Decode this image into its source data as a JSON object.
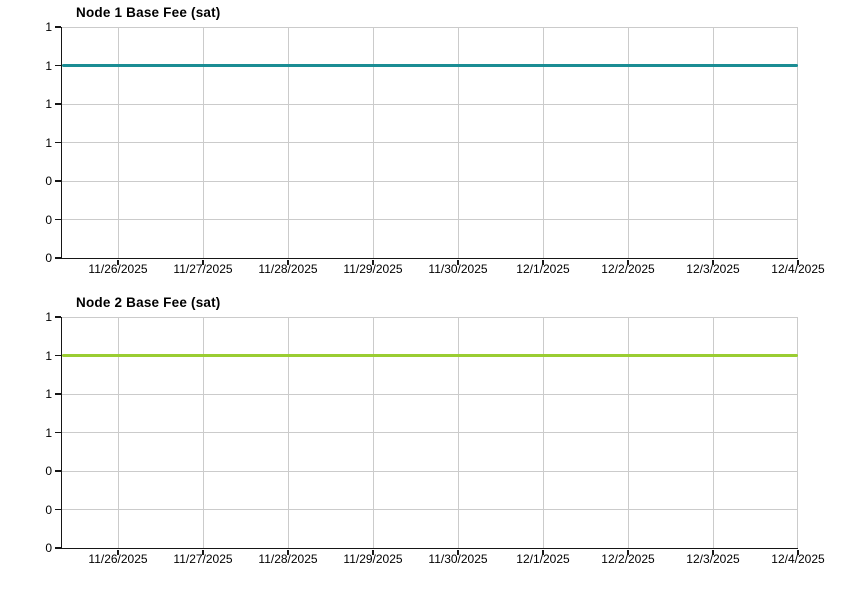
{
  "page": {
    "background": "#ffffff",
    "grid_color": "#cbcbcb",
    "axis_color": "#161616",
    "text_color": "#000000"
  },
  "chart_data": [
    {
      "type": "line",
      "title": "Node 1 Base Fee (sat)",
      "xlabel": "",
      "ylabel": "",
      "x": [
        "11/26/2025",
        "11/27/2025",
        "11/28/2025",
        "11/29/2025",
        "11/30/2025",
        "12/1/2025",
        "12/2/2025",
        "12/3/2025",
        "12/4/2025"
      ],
      "series": [
        {
          "name": "Node 1 Base Fee",
          "color": "#1b8d94",
          "values": [
            1,
            1,
            1,
            1,
            1,
            1,
            1,
            1,
            1
          ]
        }
      ],
      "ylim": [
        0,
        1.2
      ],
      "y_ticks": [
        {
          "value": 1.2,
          "label": "1"
        },
        {
          "value": 1.0,
          "label": "1"
        },
        {
          "value": 0.8,
          "label": "1"
        },
        {
          "value": 0.6,
          "label": "1"
        },
        {
          "value": 0.4,
          "label": "0"
        },
        {
          "value": 0.2,
          "label": "0"
        },
        {
          "value": 0.0,
          "label": "0"
        }
      ],
      "grid": true,
      "legend": "none"
    },
    {
      "type": "line",
      "title": "Node 2 Base Fee (sat)",
      "xlabel": "",
      "ylabel": "",
      "x": [
        "11/26/2025",
        "11/27/2025",
        "11/28/2025",
        "11/29/2025",
        "11/30/2025",
        "12/1/2025",
        "12/2/2025",
        "12/3/2025",
        "12/4/2025"
      ],
      "series": [
        {
          "name": "Node 2 Base Fee",
          "color": "#9acd32",
          "values": [
            1,
            1,
            1,
            1,
            1,
            1,
            1,
            1,
            1
          ]
        }
      ],
      "ylim": [
        0,
        1.2
      ],
      "y_ticks": [
        {
          "value": 1.2,
          "label": "1"
        },
        {
          "value": 1.0,
          "label": "1"
        },
        {
          "value": 0.8,
          "label": "1"
        },
        {
          "value": 0.6,
          "label": "1"
        },
        {
          "value": 0.4,
          "label": "0"
        },
        {
          "value": 0.2,
          "label": "0"
        },
        {
          "value": 0.0,
          "label": "0"
        }
      ],
      "grid": true,
      "legend": "none"
    }
  ]
}
